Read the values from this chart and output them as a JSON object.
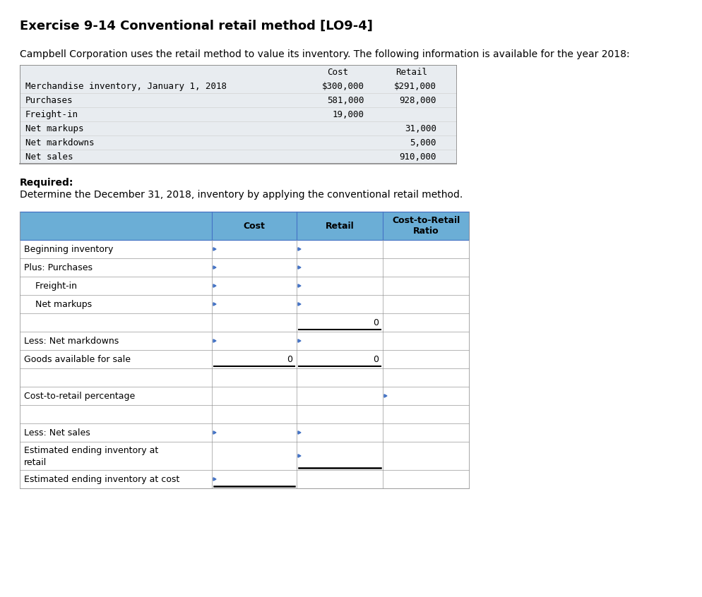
{
  "title": "Exercise 9-14 Conventional retail method [LO9-4]",
  "intro": "Campbell Corporation uses the retail method to value its inventory. The following information is available for the year 2018:",
  "top_table_rows": [
    [
      "Merchandise inventory, January 1, 2018",
      "$300,000",
      "$291,000"
    ],
    [
      "Purchases",
      "581,000",
      "928,000"
    ],
    [
      "Freight-in",
      "19,000",
      ""
    ],
    [
      "Net markups",
      "",
      "31,000"
    ],
    [
      "Net markdowns",
      "",
      "5,000"
    ],
    [
      "Net sales",
      "",
      "910,000"
    ]
  ],
  "required_label": "Required:",
  "required_text": "Determine the December 31, 2018, inventory by applying the conventional retail method.",
  "bt_col_headers": [
    "",
    "Cost",
    "Retail",
    "Cost-to-Retail\nRatio"
  ],
  "bt_rows": [
    {
      "label": "Beginning inventory",
      "cost_val": "",
      "retail_val": "",
      "cost_arrow": true,
      "retail_arrow": true,
      "ratio_arrow": false,
      "retail_ul": false,
      "cost_ul": false,
      "retail_ul2": false,
      "retail_ul3": false,
      "cost_ul2": false,
      "tall": false
    },
    {
      "label": "Plus: Purchases",
      "cost_val": "",
      "retail_val": "",
      "cost_arrow": true,
      "retail_arrow": true,
      "ratio_arrow": false,
      "retail_ul": false,
      "cost_ul": false,
      "retail_ul2": false,
      "retail_ul3": false,
      "cost_ul2": false,
      "tall": false
    },
    {
      "label": "    Freight-in",
      "cost_val": "",
      "retail_val": "",
      "cost_arrow": true,
      "retail_arrow": true,
      "ratio_arrow": false,
      "retail_ul": false,
      "cost_ul": false,
      "retail_ul2": false,
      "retail_ul3": false,
      "cost_ul2": false,
      "tall": false
    },
    {
      "label": "    Net markups",
      "cost_val": "",
      "retail_val": "",
      "cost_arrow": true,
      "retail_arrow": true,
      "ratio_arrow": false,
      "retail_ul": false,
      "cost_ul": false,
      "retail_ul2": false,
      "retail_ul3": false,
      "cost_ul2": false,
      "tall": false
    },
    {
      "label": "",
      "cost_val": "",
      "retail_val": "0",
      "cost_arrow": false,
      "retail_arrow": false,
      "ratio_arrow": false,
      "retail_ul": true,
      "cost_ul": false,
      "retail_ul2": false,
      "retail_ul3": false,
      "cost_ul2": false,
      "tall": false
    },
    {
      "label": "Less: Net markdowns",
      "cost_val": "",
      "retail_val": "",
      "cost_arrow": true,
      "retail_arrow": true,
      "ratio_arrow": false,
      "retail_ul": false,
      "cost_ul": false,
      "retail_ul2": false,
      "retail_ul3": false,
      "cost_ul2": false,
      "tall": false
    },
    {
      "label": "Goods available for sale",
      "cost_val": "0",
      "retail_val": "0",
      "cost_arrow": false,
      "retail_arrow": false,
      "ratio_arrow": false,
      "retail_ul": false,
      "cost_ul": true,
      "retail_ul2": true,
      "retail_ul3": false,
      "cost_ul2": false,
      "tall": false
    },
    {
      "label": "",
      "cost_val": "",
      "retail_val": "",
      "cost_arrow": false,
      "retail_arrow": false,
      "ratio_arrow": false,
      "retail_ul": false,
      "cost_ul": false,
      "retail_ul2": false,
      "retail_ul3": false,
      "cost_ul2": false,
      "tall": false
    },
    {
      "label": "Cost-to-retail percentage",
      "cost_val": "",
      "retail_val": "",
      "cost_arrow": false,
      "retail_arrow": false,
      "ratio_arrow": true,
      "retail_ul": false,
      "cost_ul": false,
      "retail_ul2": false,
      "retail_ul3": false,
      "cost_ul2": false,
      "tall": false
    },
    {
      "label": "",
      "cost_val": "",
      "retail_val": "",
      "cost_arrow": false,
      "retail_arrow": false,
      "ratio_arrow": false,
      "retail_ul": false,
      "cost_ul": false,
      "retail_ul2": false,
      "retail_ul3": false,
      "cost_ul2": false,
      "tall": false
    },
    {
      "label": "Less: Net sales",
      "cost_val": "",
      "retail_val": "",
      "cost_arrow": true,
      "retail_arrow": true,
      "ratio_arrow": false,
      "retail_ul": false,
      "cost_ul": false,
      "retail_ul2": false,
      "retail_ul3": false,
      "cost_ul2": false,
      "tall": false
    },
    {
      "label": "Estimated ending inventory at\nretail",
      "cost_val": "",
      "retail_val": "",
      "cost_arrow": false,
      "retail_arrow": true,
      "ratio_arrow": false,
      "retail_ul": false,
      "cost_ul": false,
      "retail_ul2": false,
      "retail_ul3": true,
      "cost_ul2": false,
      "tall": true
    },
    {
      "label": "Estimated ending inventory at cost",
      "cost_val": "",
      "retail_val": "",
      "cost_arrow": true,
      "retail_arrow": false,
      "ratio_arrow": false,
      "retail_ul": false,
      "cost_ul": false,
      "retail_ul2": false,
      "retail_ul3": false,
      "cost_ul2": true,
      "tall": false
    }
  ],
  "header_blue": "#6baed6",
  "border_blue": "#4472c4",
  "arrow_color": "#4472c4",
  "table_bg": "#e8ecf0",
  "bg_color": "#ffffff",
  "mono_font": "DejaVu Sans Mono",
  "sans_font": "DejaVu Sans"
}
